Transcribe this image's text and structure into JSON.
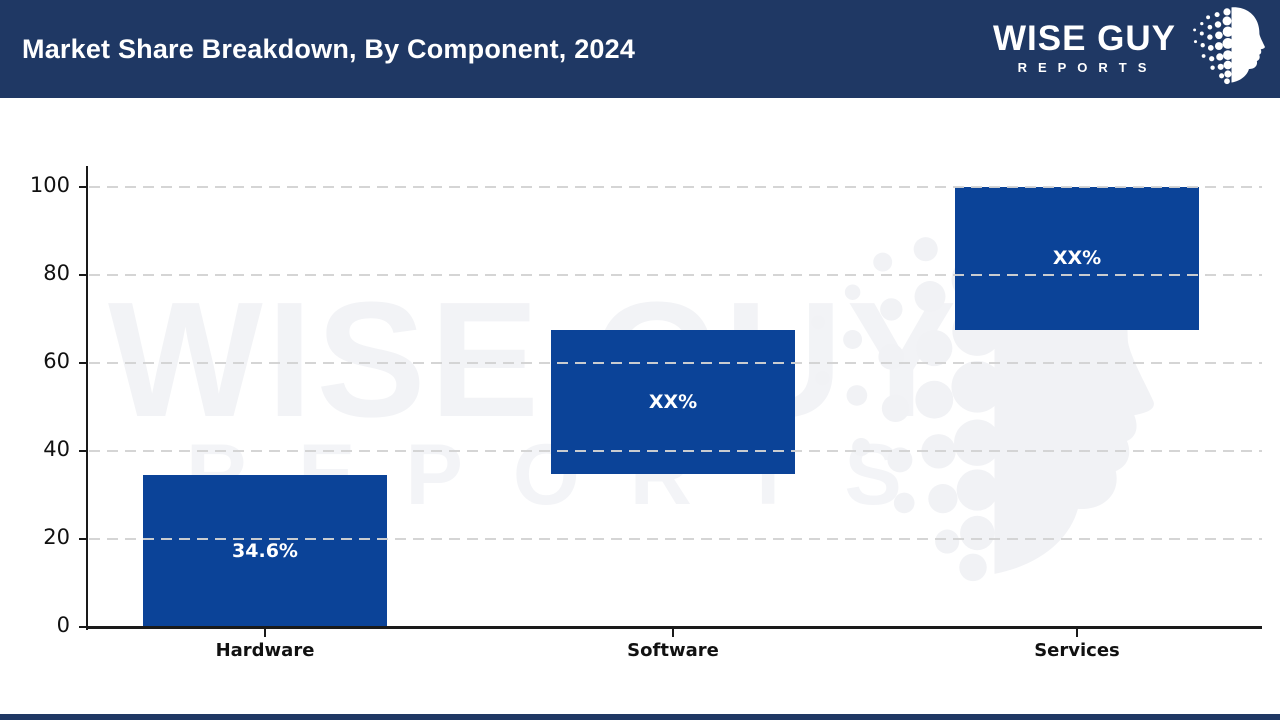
{
  "header": {
    "title": "Market Share Breakdown, By Component, 2024",
    "logo": {
      "line1": "WISE GUY",
      "line2": "REPORTS"
    }
  },
  "watermark": {
    "line1": "WISE GUY",
    "line2": "REPORTS"
  },
  "colors": {
    "header_bg": "#1f3864",
    "bar": "#0b4398",
    "gridline": "#d3d3d3",
    "axis": "#1a1a1a",
    "bar_label": "#ffffff",
    "watermark": "#f2f3f6"
  },
  "chart_data": {
    "type": "bar",
    "variant": "waterfall",
    "title": "Market Share Breakdown, By Component, 2024",
    "categories": [
      "Hardware",
      "Software",
      "Services"
    ],
    "segments": [
      {
        "category": "Hardware",
        "start": 0,
        "end": 34.6,
        "label": "34.6%"
      },
      {
        "category": "Software",
        "start": 34.8,
        "end": 67.4,
        "label": "XX%"
      },
      {
        "category": "Services",
        "start": 67.6,
        "end": 100,
        "label": "XX%"
      }
    ],
    "ylabel": "",
    "ylim": [
      0,
      105
    ],
    "yticks": [
      0,
      20,
      40,
      60,
      80,
      100
    ],
    "grid": true,
    "grid_style": "dashed",
    "legend": false,
    "bar_color": "#0b4398",
    "units": "%"
  }
}
